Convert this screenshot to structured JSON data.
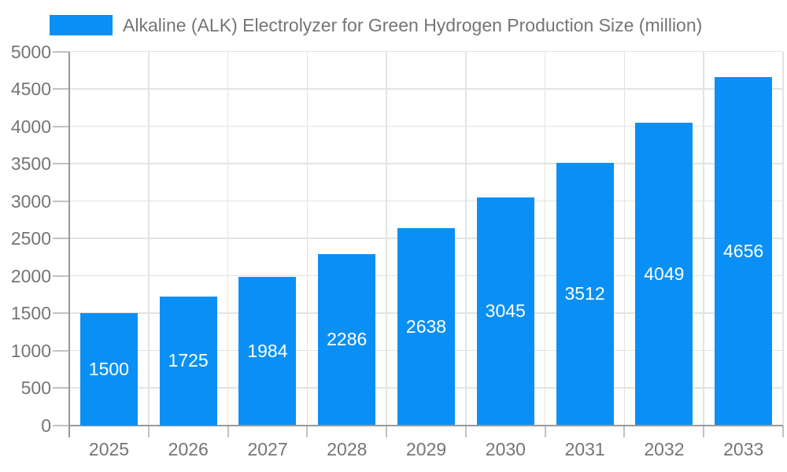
{
  "legend": {
    "label": "Alkaline (ALK) Electrolyzer for Green Hydrogen Production Size (million)"
  },
  "colors": {
    "bar": "#0a90f5",
    "grid": "#e3e3e3",
    "axis": "#999999",
    "tick": "#c2c2c2",
    "text": "#757575",
    "bar_label_text": "#ffffff",
    "background": "#ffffff"
  },
  "chart_data": {
    "type": "bar",
    "title": "",
    "categories": [
      "2025",
      "2026",
      "2027",
      "2028",
      "2029",
      "2030",
      "2031",
      "2032",
      "2033"
    ],
    "series": [
      {
        "name": "Alkaline (ALK) Electrolyzer for Green Hydrogen Production Size (million)",
        "values": [
          1500,
          1725,
          1984,
          2286,
          2638,
          3045,
          3512,
          4049,
          4656
        ]
      }
    ],
    "xlabel": "",
    "ylabel": "",
    "ylim": [
      0,
      5000
    ],
    "y_tick_step": 500,
    "grid": true,
    "legend_position": "top-left",
    "value_label_position": "inside-center"
  }
}
